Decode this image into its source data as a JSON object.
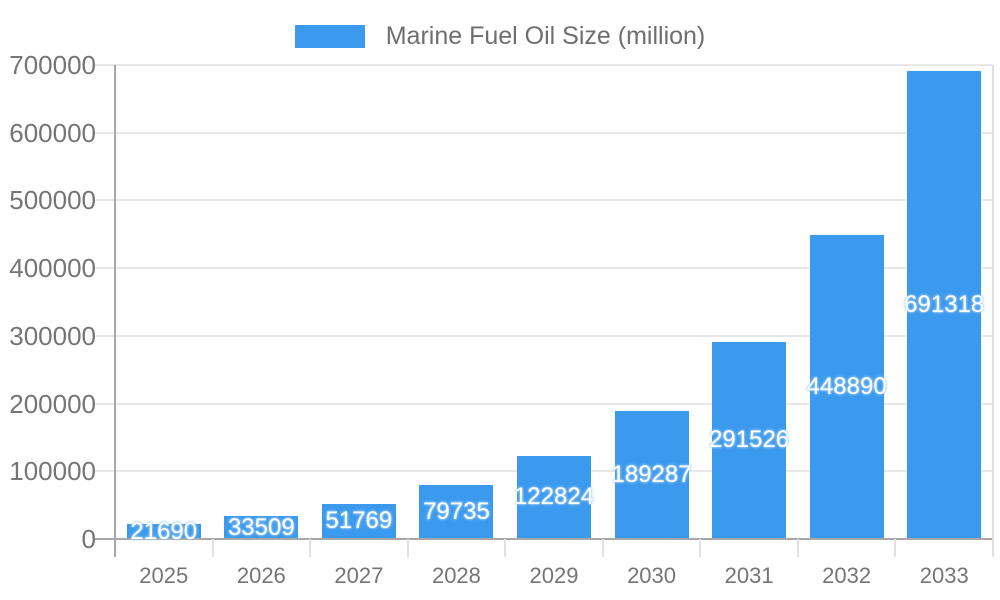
{
  "legend": {
    "label": "Marine Fuel Oil Size (million)"
  },
  "colors": {
    "bar": "#3B99EE",
    "grid": "#E8E8E8",
    "axis_line": "#A8A8A8",
    "border_line": "#E0E0E0",
    "axis_text": "#757575",
    "legend_text": "#6E6E6E",
    "value_text": "#FFFFFF",
    "value_outline": "#A3CFF5",
    "background": "#FFFFFF"
  },
  "chart_data": {
    "type": "bar",
    "title": "Marine Fuel Oil Size (million)",
    "categories": [
      "2025",
      "2026",
      "2027",
      "2028",
      "2029",
      "2030",
      "2031",
      "2032",
      "2033"
    ],
    "values": [
      21690,
      33509,
      51769,
      79735,
      122824,
      189287,
      291526,
      448890,
      691318
    ],
    "series_name": "Marine Fuel Oil Size (million)",
    "xlabel": "",
    "ylabel": "",
    "ylim": [
      0,
      700000
    ],
    "ytick_step": 100000,
    "yticks": [
      "0",
      "100000",
      "200000",
      "300000",
      "400000",
      "500000",
      "600000",
      "700000"
    ],
    "grid": true,
    "legend_position": "top",
    "value_labels": "inside-center-white"
  }
}
